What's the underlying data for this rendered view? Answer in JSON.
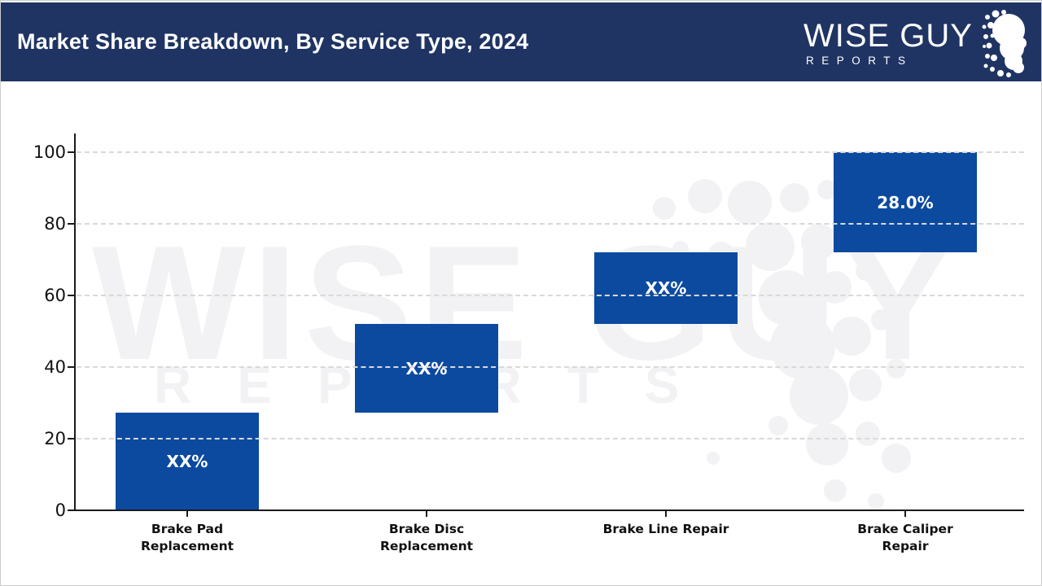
{
  "header": {
    "title": "Market Share Breakdown, By Service Type, 2024",
    "bg_color": "#1f3463",
    "logo": {
      "wordmark": "WISE GUY",
      "subtitle": "REPORTS"
    }
  },
  "watermark": {
    "line1": "WISE GUY",
    "line2": "REPORTS"
  },
  "chart_data": {
    "type": "waterfall",
    "title": "Market Share Breakdown, By Service Type, 2024",
    "categories": [
      "Brake Pad\nReplacement",
      "Brake Disc\nReplacement",
      "Brake Line Repair",
      "Brake Caliper\nRepair"
    ],
    "segments": [
      {
        "category": "Brake Pad Replacement",
        "start": 0,
        "end": 27.3,
        "value": 27.3,
        "label": "XX%"
      },
      {
        "category": "Brake Disc Replacement",
        "start": 27.3,
        "end": 52,
        "value": 24.7,
        "label": "XX%"
      },
      {
        "category": "Brake Line Repair",
        "start": 52,
        "end": 72,
        "value": 20,
        "label": "XX%"
      },
      {
        "category": "Brake Caliper Repair",
        "start": 72,
        "end": 100,
        "value": 28.0,
        "label": "28.0%"
      }
    ],
    "ylim": [
      0,
      100
    ],
    "yticks": [
      0,
      20,
      40,
      60,
      80,
      100
    ],
    "grid": "horizontal-dashed",
    "bar_color": "#0c4aa0",
    "bar_label_color": "#ffffff",
    "xlabel": "",
    "ylabel": ""
  }
}
